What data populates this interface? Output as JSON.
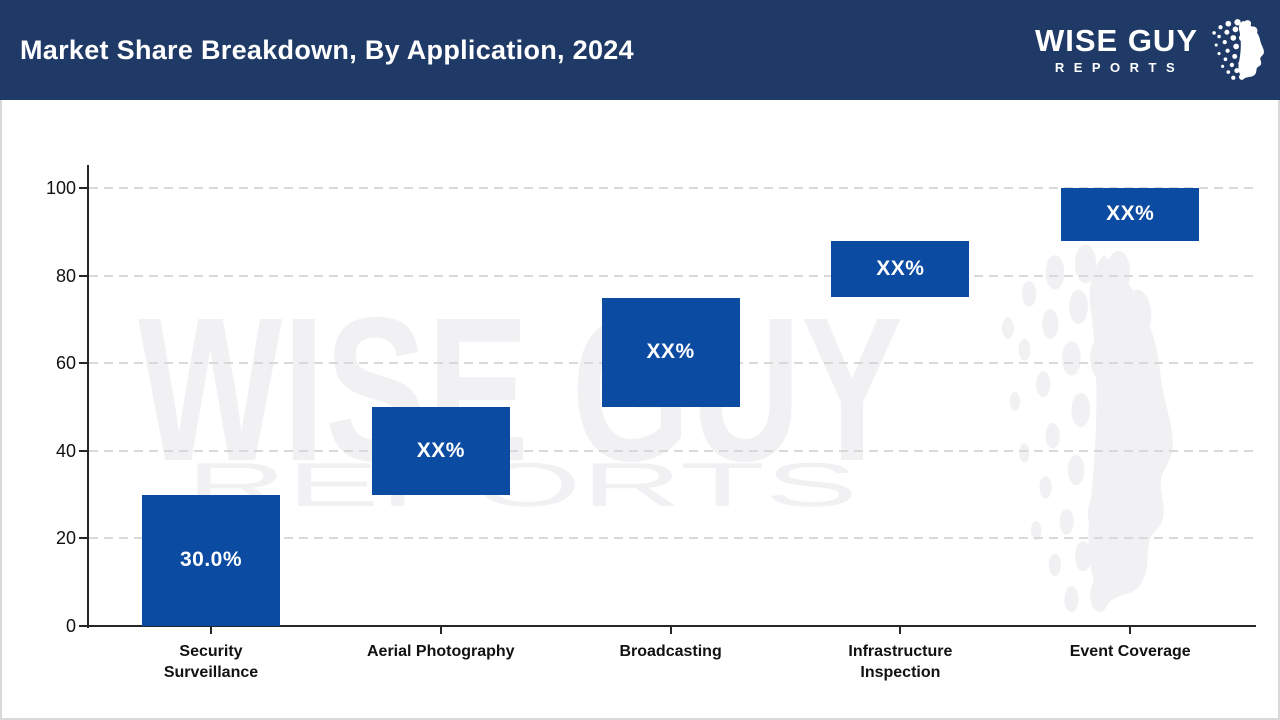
{
  "header": {
    "title": "Market Share Breakdown, By Application, 2024",
    "brand": {
      "name_line1": "WISE GUY",
      "name_line2": "REPORTS",
      "logo_icon": "dotted-head-profile-icon"
    }
  },
  "watermark": {
    "line1": "WISE GUY",
    "line2": "REPORTS"
  },
  "colors": {
    "header_bg": "#203a67",
    "bar": "#0b4ba1",
    "bar_label": "#ffffff",
    "gridline": "#d9d9d9",
    "axis": "#262626",
    "text": "#111111",
    "watermark": "#f1f1f3",
    "canvas_bg": "#ffffff"
  },
  "chart_data": {
    "type": "bar",
    "subtype": "waterfall",
    "title": "Market Share Breakdown, By Application, 2024",
    "categories": [
      "Security Surveillance",
      "Aerial Photography",
      "Broadcasting",
      "Infrastructure Inspection",
      "Event Coverage"
    ],
    "category_lines": [
      [
        "Security",
        "Surveillance"
      ],
      [
        "Aerial Photography"
      ],
      [
        "Broadcasting"
      ],
      [
        "Infrastructure",
        "Inspection"
      ],
      [
        "Event Coverage"
      ]
    ],
    "values": [
      30,
      20,
      25,
      13,
      12
    ],
    "cumulative_start": [
      0,
      30,
      50,
      75,
      88
    ],
    "cumulative_end": [
      30,
      50,
      75,
      88,
      100
    ],
    "bar_labels": [
      "30.0%",
      "XX%",
      "XX%",
      "XX%",
      "XX%"
    ],
    "yticks": [
      0,
      20,
      40,
      60,
      80,
      100
    ],
    "ylim": [
      0,
      105
    ],
    "xlabel": "",
    "ylabel": "",
    "grid": "horizontal-dashed",
    "legend": "none"
  }
}
